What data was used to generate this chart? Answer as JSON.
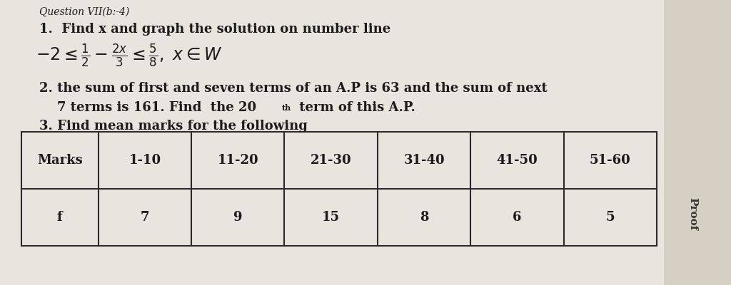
{
  "background_color": "#d6cfc4",
  "paper_color": "#e8e4de",
  "line1": "1.  Find x and graph the solution on number line",
  "math_expr": "$-2\\leq\\frac{1}{2}-\\frac{2x}{3}\\leq\\frac{5}{8},\\ x\\in W$",
  "line3": "2. the sum of first and seven terms of an A.P is 63 and the sum of next",
  "line4a": "    7 terms is 161. Find  the 20",
  "line4b": " term of this A.P.",
  "line5": "3. Find mean marks for the following",
  "table_headers": [
    "Marks",
    "1-10",
    "11-20",
    "21-30",
    "31-40",
    "41-50",
    "51-60"
  ],
  "table_row_f": [
    "f",
    "7",
    "9",
    "15",
    "8",
    "6",
    "5"
  ],
  "font_color": "#1c1c1c",
  "table_border_color": "#2a2a2a",
  "watermark_text": "Proof",
  "top_cut_text": "Question VII(b:-4)"
}
